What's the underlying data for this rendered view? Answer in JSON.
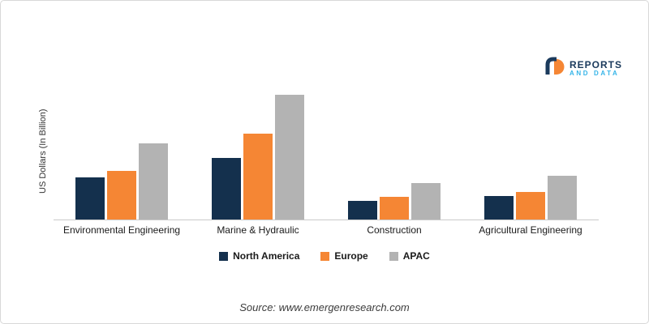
{
  "logo": {
    "line1": "REPORTS",
    "line2": "AND DATA"
  },
  "source": {
    "text": "Source: www.emergenresearch.com"
  },
  "chart_data": {
    "type": "bar",
    "title": "",
    "xlabel": "",
    "ylabel": "US Dollars (In Billion)",
    "categories": [
      "Environmental Engineering",
      "Marine & Hydraulic",
      "Construction",
      "Agricultural Engineering"
    ],
    "series": [
      {
        "name": "North America",
        "color": "#14304d",
        "values": [
          3.4,
          4.9,
          1.5,
          1.9
        ]
      },
      {
        "name": "Europe",
        "color": "#f58634",
        "values": [
          3.9,
          6.9,
          1.8,
          2.2
        ]
      },
      {
        "name": "APAC",
        "color": "#b3b3b3",
        "values": [
          6.1,
          10.0,
          2.9,
          3.5
        ]
      }
    ],
    "ylim": [
      0,
      12
    ],
    "grid": false,
    "legend_position": "bottom"
  }
}
